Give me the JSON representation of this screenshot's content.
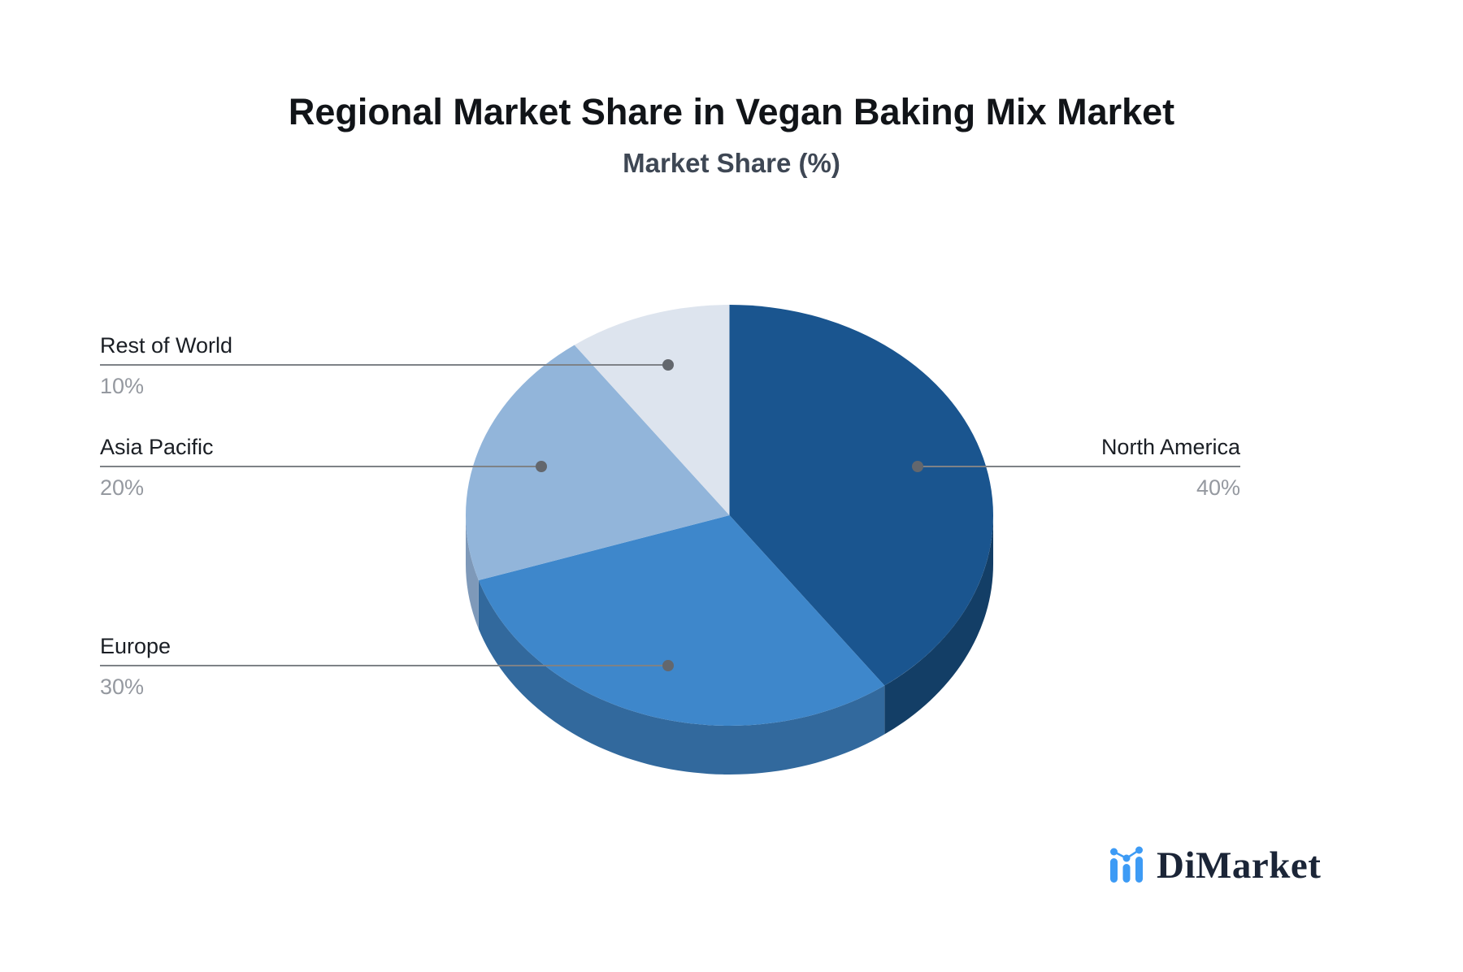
{
  "title": "Regional Market Share in Vegan Baking Mix Market",
  "subtitle": "Market Share (%)",
  "chart_data": {
    "type": "pie",
    "effect": "3d",
    "title": "Regional Market Share in Vegan Baking Mix Market",
    "subtitle": "Market Share (%)",
    "unit": "%",
    "start_angle_deg": 0,
    "direction": "clockwise",
    "slices": [
      {
        "label": "North America",
        "value": 40,
        "pct_text": "40%",
        "color": "#1A558F",
        "side_color": "#133E66",
        "label_side": "right"
      },
      {
        "label": "Europe",
        "value": 30,
        "pct_text": "30%",
        "color": "#3E87CB",
        "side_color": "#32699D",
        "label_side": "left"
      },
      {
        "label": "Asia Pacific",
        "value": 20,
        "pct_text": "20%",
        "color": "#92B5DA",
        "side_color": "#7E99B9",
        "label_side": "left"
      },
      {
        "label": "Rest of World",
        "value": 10,
        "pct_text": "10%",
        "color": "#DDE4EE",
        "side_color": "#B9C4D6",
        "label_side": "left"
      }
    ],
    "legend_position": "none",
    "grid": false,
    "leader_line_color": "#7E8287",
    "leader_dot_color": "#63676D",
    "label_color": "#1A1E24",
    "pct_color": "#9599A0"
  },
  "brand": {
    "name": "DiMarket",
    "icon": "bar-line-chart-icon",
    "icon_color": "#3D9BF5",
    "text_color": "#1B2537"
  }
}
